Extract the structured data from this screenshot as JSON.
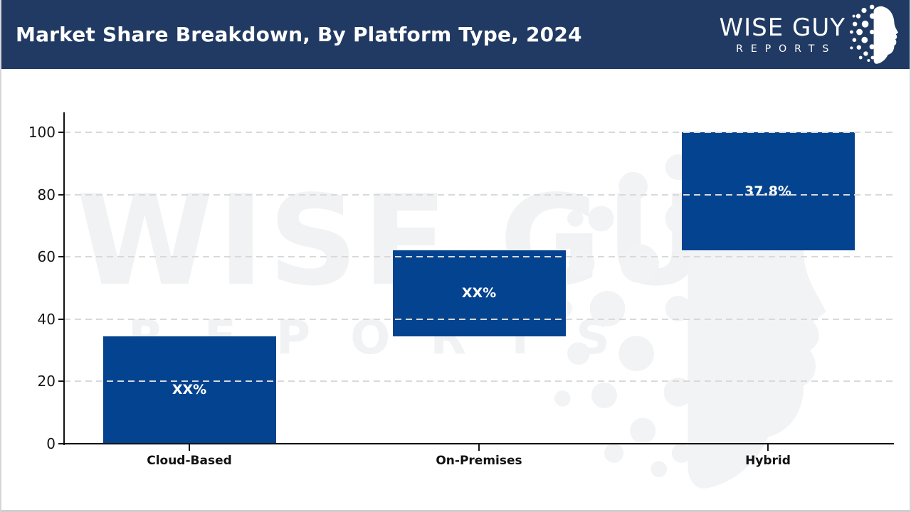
{
  "header": {
    "title": "Market Share Breakdown, By Platform Type, 2024",
    "logo": {
      "line1": "WISE GUY",
      "line2": "REPORTS"
    }
  },
  "watermark": {
    "line1": "WISE GUY",
    "line2": "REPORTS"
  },
  "chart_data": {
    "type": "bar",
    "subtype": "stacked-floating-segments",
    "title": "Market Share Breakdown, By Platform Type, 2024",
    "categories": [
      "Cloud-Based",
      "On-Premises",
      "Hybrid"
    ],
    "segments": [
      {
        "category": "Cloud-Based",
        "start": 0,
        "end": 34.5,
        "label": "XX%"
      },
      {
        "category": "On-Premises",
        "start": 34.5,
        "end": 62.2,
        "label": "XX%"
      },
      {
        "category": "Hybrid",
        "start": 62.2,
        "end": 100,
        "label": "37.8%"
      }
    ],
    "y_ticks": [
      0,
      20,
      40,
      60,
      80,
      100
    ],
    "ylim": [
      0,
      106
    ],
    "grid": "horizontal-dashed",
    "legend": "none",
    "xlabel": "",
    "ylabel": "",
    "bar_color": "#04438f",
    "bar_label_color": "#ffffff"
  },
  "colors": {
    "header_bg": "#213a63",
    "bar": "#04438f",
    "grid": "#d9d9d9",
    "watermark": "#f1f2f4",
    "axis": "#111111"
  }
}
